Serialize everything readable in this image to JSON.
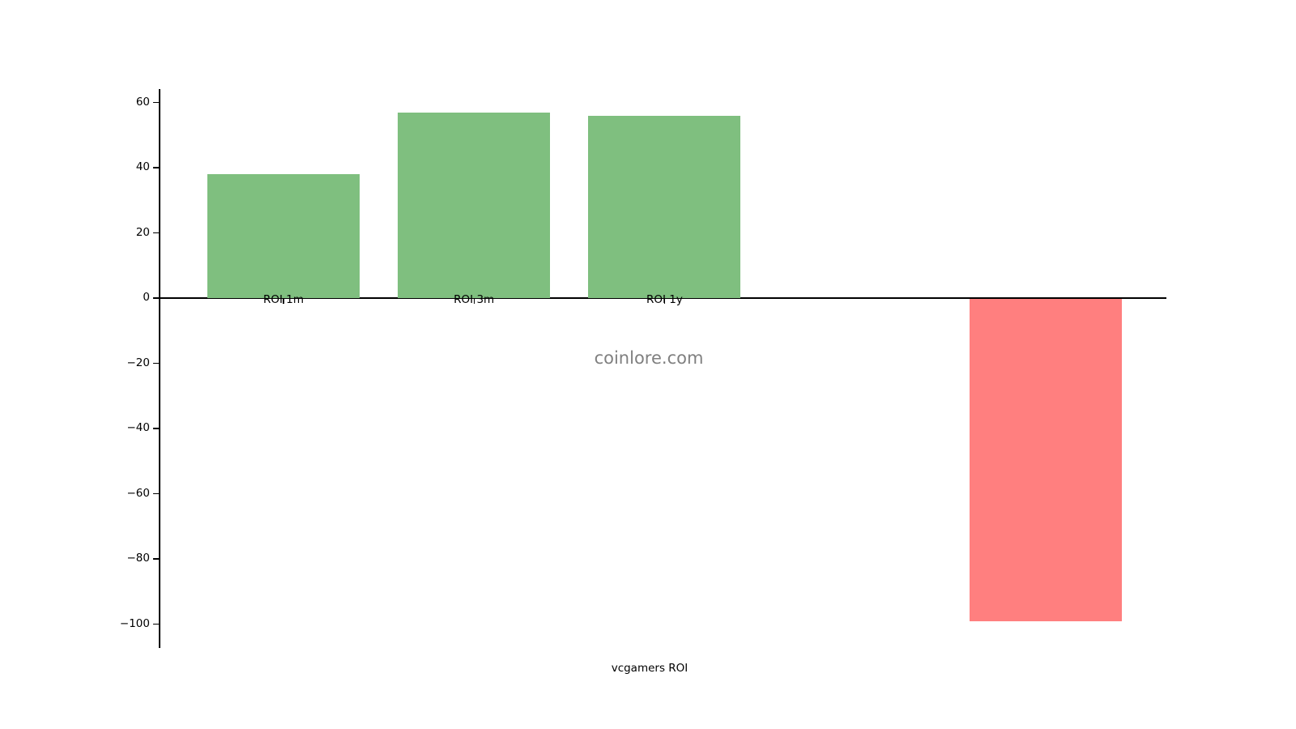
{
  "chart_data": {
    "type": "bar",
    "title": "",
    "xlabel": "vcgamers ROI",
    "ylabel": "",
    "watermark": "coinlore.com",
    "categories": [
      "ROI 1m",
      "ROI 3m",
      "ROI 1y",
      "",
      ""
    ],
    "values": [
      38,
      57,
      56,
      null,
      -99
    ],
    "yticks": [
      60,
      40,
      20,
      0,
      -20,
      -40,
      -60,
      -80,
      -100
    ],
    "ytick_labels": [
      "60",
      "40",
      "20",
      "0",
      "−20",
      "−40",
      "−60",
      "−80",
      "−100"
    ],
    "ylim": [
      -107,
      64
    ],
    "grid": false,
    "legend": false,
    "colors": {
      "positive_bar": "#7fbf7f",
      "negative_bar": "#ff7f7f",
      "axis": "#000000",
      "tick_text": "#000000",
      "watermark_text": "#808080"
    }
  }
}
